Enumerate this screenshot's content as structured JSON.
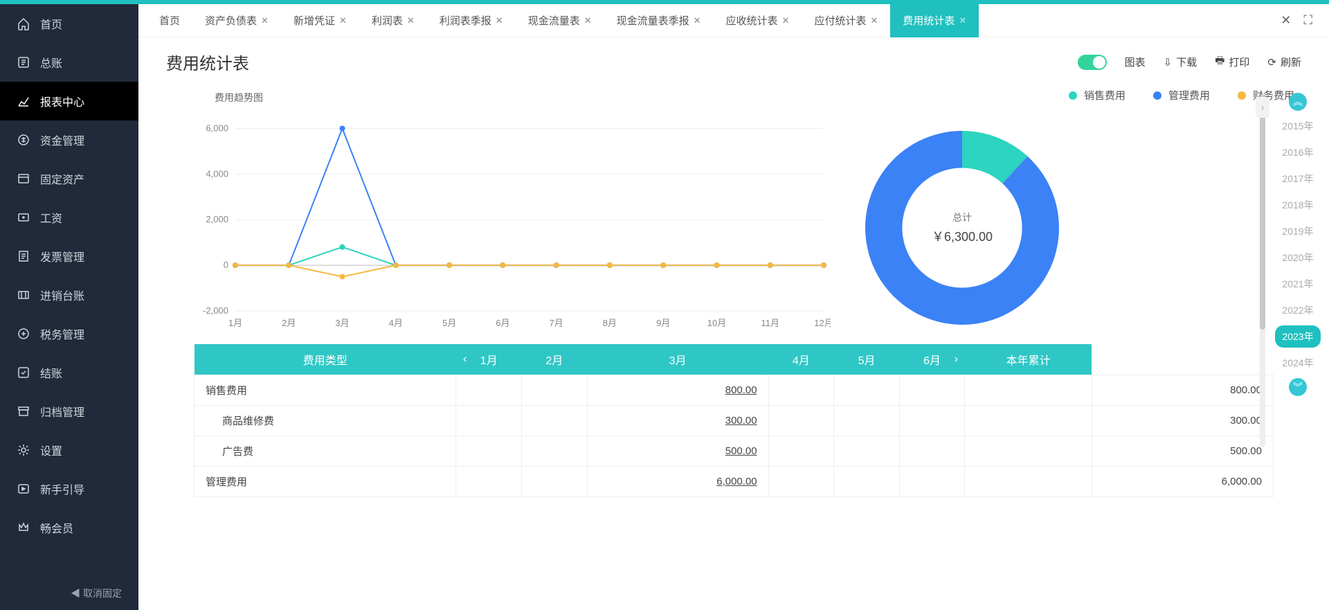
{
  "sidebar": {
    "items": [
      {
        "label": "首页",
        "icon": "home"
      },
      {
        "label": "总账",
        "icon": "ledger"
      },
      {
        "label": "报表中心",
        "icon": "report",
        "active": true
      },
      {
        "label": "资金管理",
        "icon": "money"
      },
      {
        "label": "固定资产",
        "icon": "asset"
      },
      {
        "label": "工资",
        "icon": "salary"
      },
      {
        "label": "发票管理",
        "icon": "invoice"
      },
      {
        "label": "进销台账",
        "icon": "stock"
      },
      {
        "label": "税务管理",
        "icon": "tax"
      },
      {
        "label": "结账",
        "icon": "close"
      },
      {
        "label": "归档管理",
        "icon": "archive"
      },
      {
        "label": "设置",
        "icon": "settings"
      },
      {
        "label": "新手引导",
        "icon": "guide"
      },
      {
        "label": "畅会员",
        "icon": "vip"
      }
    ],
    "footer": "◀ 取消固定"
  },
  "tabs": {
    "items": [
      {
        "label": "首页",
        "closable": false
      },
      {
        "label": "资产负债表",
        "closable": true
      },
      {
        "label": "新增凭证",
        "closable": true
      },
      {
        "label": "利润表",
        "closable": true
      },
      {
        "label": "利润表季报",
        "closable": true
      },
      {
        "label": "现金流量表",
        "closable": true
      },
      {
        "label": "现金流量表季报",
        "closable": true
      },
      {
        "label": "应收统计表",
        "closable": true
      },
      {
        "label": "应付统计表",
        "closable": true
      },
      {
        "label": "费用统计表",
        "closable": true,
        "active": true
      }
    ]
  },
  "page": {
    "title": "费用统计表",
    "chart_toggle_label": "图表",
    "download_label": "下载",
    "print_label": "打印",
    "refresh_label": "刷新"
  },
  "chart": {
    "title": "费用趋势图",
    "type": "line",
    "x_labels": [
      "1月",
      "2月",
      "3月",
      "4月",
      "5月",
      "6月",
      "7月",
      "8月",
      "9月",
      "10月",
      "11月",
      "12月"
    ],
    "y_ticks": [
      -2000,
      0,
      2000,
      4000,
      6000
    ],
    "y_tick_labels": [
      "-2,000",
      "0",
      "2,000",
      "4,000",
      "6,000"
    ],
    "ylim": [
      -2000,
      6500
    ],
    "series": [
      {
        "name": "销售费用",
        "color": "#2dd4bf",
        "data": [
          0,
          0,
          800,
          0,
          0,
          0,
          0,
          0,
          0,
          0,
          0,
          0
        ]
      },
      {
        "name": "管理费用",
        "color": "#3b82f6",
        "data": [
          0,
          0,
          6000,
          0,
          0,
          0,
          0,
          0,
          0,
          0,
          0,
          0
        ]
      },
      {
        "name": "财务费用",
        "color": "#f5b841",
        "data": [
          0,
          0,
          -500,
          0,
          0,
          0,
          0,
          0,
          0,
          0,
          0,
          0
        ]
      }
    ],
    "line_width": 2,
    "marker_radius": 4,
    "background_color": "#ffffff",
    "grid_color": "#e5e7eb"
  },
  "donut": {
    "type": "donut",
    "center_label": "总计",
    "center_value": "￥6,300.00",
    "inner_radius": 68,
    "outer_radius": 110,
    "slices": [
      {
        "name": "销售费用",
        "value": 800,
        "color": "#2dd4bf"
      },
      {
        "name": "管理费用",
        "value": 6000,
        "color": "#3b82f6"
      },
      {
        "name": "财务费用",
        "value": -500,
        "color": "#f5b841"
      }
    ]
  },
  "legend": [
    {
      "name": "销售费用",
      "color": "#2dd4bf"
    },
    {
      "name": "管理费用",
      "color": "#3b82f6"
    },
    {
      "name": "财务费用",
      "color": "#f5b841"
    }
  ],
  "table": {
    "header_bg": "#2fc7c6",
    "columns": [
      "费用类型",
      "1月",
      "2月",
      "3月",
      "4月",
      "5月",
      "6月",
      "本年累计"
    ],
    "rows": [
      {
        "label": "销售费用",
        "indent": 0,
        "cells": [
          "",
          "",
          "800.00",
          "",
          "",
          "",
          ""
        ],
        "underline_col": 3,
        "total": "800.00"
      },
      {
        "label": "商品维修费",
        "indent": 1,
        "cells": [
          "",
          "",
          "300.00",
          "",
          "",
          "",
          ""
        ],
        "underline_col": 3,
        "total": "300.00"
      },
      {
        "label": "广告费",
        "indent": 1,
        "cells": [
          "",
          "",
          "500.00",
          "",
          "",
          "",
          ""
        ],
        "underline_col": 3,
        "total": "500.00"
      },
      {
        "label": "管理费用",
        "indent": 0,
        "cells": [
          "",
          "",
          "6,000.00",
          "",
          "",
          "",
          ""
        ],
        "underline_col": 3,
        "total": "6,000.00"
      }
    ]
  },
  "years": {
    "items": [
      "2015年",
      "2016年",
      "2017年",
      "2018年",
      "2019年",
      "2020年",
      "2021年",
      "2022年",
      "2023年",
      "2024年"
    ],
    "active": "2023年"
  }
}
